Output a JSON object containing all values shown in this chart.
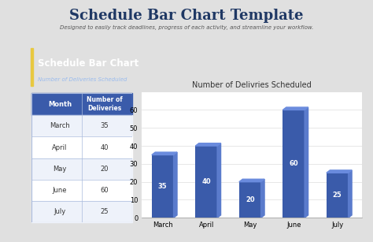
{
  "title_main": "Schedule Bar Chart Template",
  "subtitle_main": "Designed to easily track deadlines, progress of each activity, and streamline your workflow.",
  "chart_title": "Number of Delivries Scheduled",
  "header_title": "Schedule Bar Chart",
  "header_subtitle": "Number of Deliveries Scheduled",
  "table_headers": [
    "Month",
    "Number of\nDeliveries"
  ],
  "categories": [
    "March",
    "April",
    "May",
    "June",
    "July"
  ],
  "values": [
    35,
    40,
    20,
    60,
    25
  ],
  "bar_color": "#3A5BAA",
  "bar_color_light": "#5A7BCC",
  "bar_color_top": "#6A8BDD",
  "ylim": [
    0,
    70
  ],
  "yticks": [
    0,
    10,
    20,
    30,
    40,
    50,
    60
  ],
  "background_outer": "#E0E0E0",
  "background_card": "#FFFFFF",
  "header_bg": "#1F3864",
  "header_accent": "#E8C840",
  "table_header_bg": "#3A5BAA",
  "table_row_bg1": "#FFFFFF",
  "table_row_bg2": "#EEF2FA",
  "table_border": "#AABBDD",
  "title_color": "#1F3864",
  "bar_label_color": "#FFFFFF",
  "chart_bg": "#FFFFFF",
  "grid_color": "#DDDDDD"
}
